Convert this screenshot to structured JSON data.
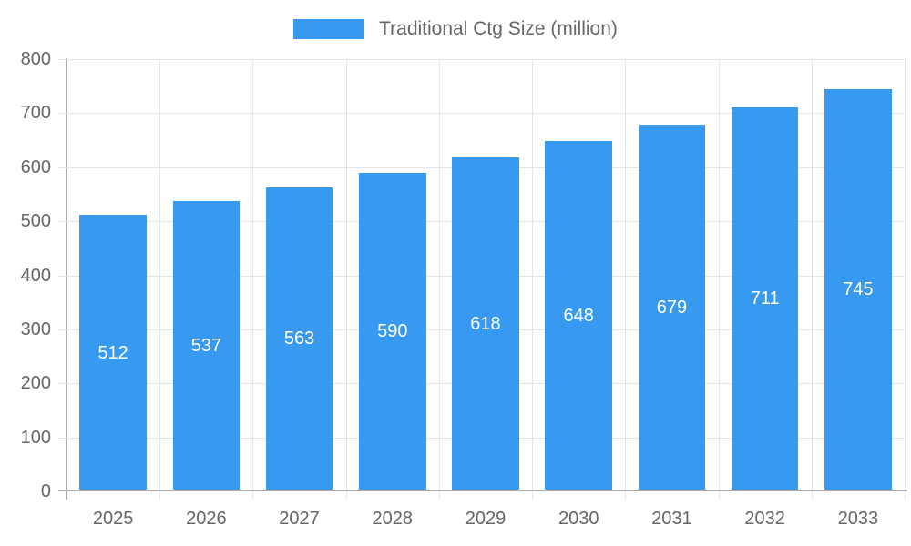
{
  "chart_data": {
    "type": "bar",
    "title": "",
    "series_name": "Traditional Ctg Size (million)",
    "categories": [
      "2025",
      "2026",
      "2027",
      "2028",
      "2029",
      "2030",
      "2031",
      "2032",
      "2033"
    ],
    "values": [
      512,
      537,
      563,
      590,
      618,
      648,
      679,
      711,
      745
    ],
    "value_labels_inside_bars": true,
    "xlabel": "",
    "ylabel": "",
    "ylim": [
      0,
      800
    ],
    "ytick_step": 100,
    "grid": true,
    "legend_position": "top-center",
    "colors": {
      "bar": "#3899F0",
      "bar_value_label": "#FFFFFF",
      "axis_text": "#666666",
      "gridline": "#E4E4E4",
      "axis_line": "#ABABAB",
      "background": "#FFFFFF"
    }
  }
}
